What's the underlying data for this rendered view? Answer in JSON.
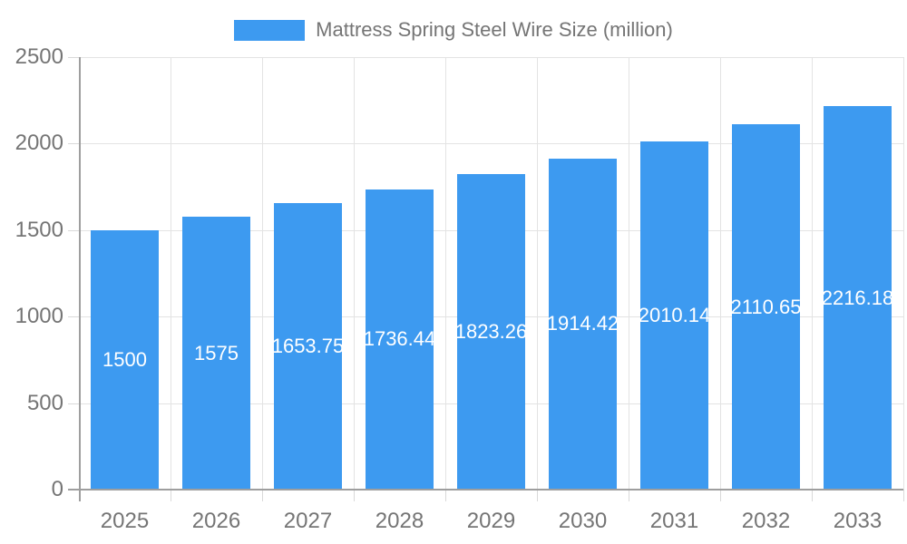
{
  "chart_data": {
    "type": "bar",
    "categories": [
      "2025",
      "2026",
      "2027",
      "2028",
      "2029",
      "2030",
      "2031",
      "2032",
      "2033"
    ],
    "series": [
      {
        "name": "Mattress Spring Steel Wire Size (million)",
        "values": [
          1500,
          1575,
          1653.75,
          1736.44,
          1823.26,
          1914.42,
          2010.14,
          2110.65,
          2216.18
        ]
      }
    ],
    "value_labels": [
      "1500",
      "1575",
      "1653.75",
      "1736.44",
      "1823.26",
      "1914.42",
      "2010.14",
      "2110.65",
      "2216.18"
    ],
    "title": "Mattress Spring Steel Wire Size (million)",
    "xlabel": "",
    "ylabel": "",
    "ylim": [
      0,
      2500
    ],
    "y_ticks": [
      0,
      500,
      1000,
      1500,
      2000,
      2500
    ],
    "grid": true,
    "legend_position": "top",
    "colors": {
      "bar": "#3D9AF0",
      "grid": "#E3E3E3",
      "axis": "#9E9E9E",
      "tick": "#D9D9D9",
      "axis_text": "#757575",
      "value_text": "#FFFFFF",
      "background": "#FFFFFF"
    }
  }
}
